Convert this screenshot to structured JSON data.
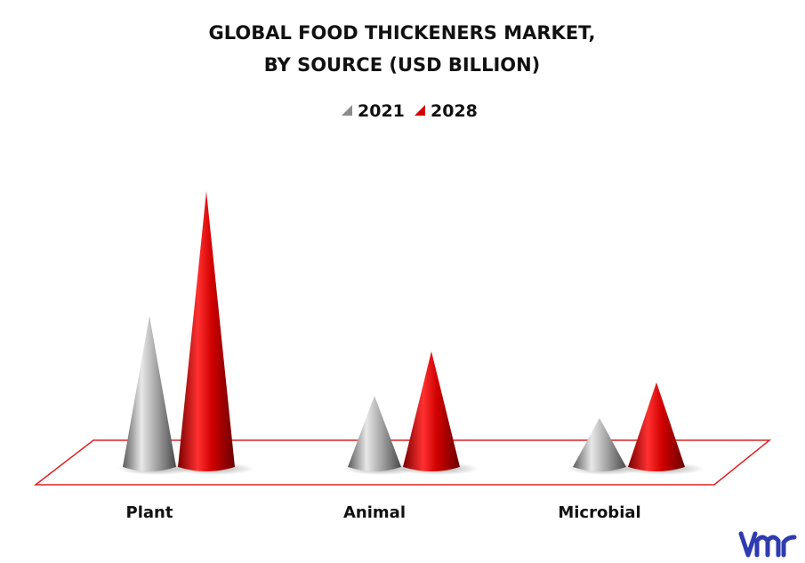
{
  "chart_data": {
    "type": "bar",
    "title_line1": "GLOBAL FOOD THICKENERS MARKET,",
    "title_line2": "BY SOURCE (USD BILLION)",
    "categories": [
      "Plant",
      "Animal",
      "Microbial"
    ],
    "series": [
      {
        "name": "2021",
        "values": [
          3.4,
          1.6,
          1.1
        ],
        "color": "#8c8c8c"
      },
      {
        "name": "2028",
        "values": [
          6.2,
          2.6,
          1.9
        ],
        "color": "#d40000"
      }
    ],
    "xlabel": "",
    "ylabel": "",
    "ylim": [
      0,
      7
    ],
    "grid": false,
    "legend_position": "top-center",
    "mark_shape": "cone"
  },
  "brand": {
    "logo_icon": "vmr-logo-icon",
    "logo_color": "#2f3bb0"
  }
}
